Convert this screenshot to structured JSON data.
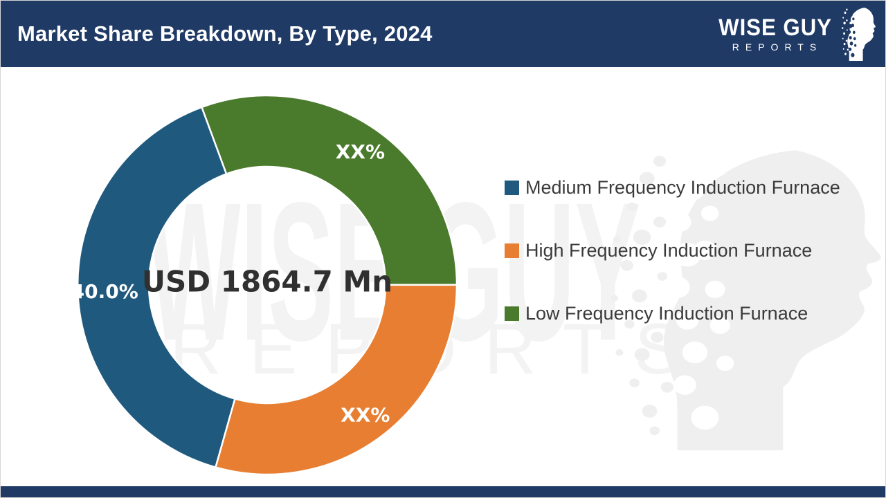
{
  "header": {
    "title": "Market Share Breakdown, By Type, 2024",
    "logo": {
      "line1": "WISE GUY",
      "line2": "REPORTS"
    }
  },
  "watermark": {
    "line1": "WISE GUY",
    "line2": "REPORTS"
  },
  "chart_data": {
    "type": "pie",
    "subtype": "donut",
    "title": "Market Share Breakdown, By Type, 2024",
    "center_label": "USD 1864.7 Mn",
    "start_angle_deg": -110.2,
    "direction": "clockwise",
    "legend_position": "right",
    "segments": [
      {
        "name": "Low Frequency Induction Furnace",
        "pct": 30.6,
        "display_label": "XX%",
        "color": "#4a7a2b"
      },
      {
        "name": "High Frequency Induction Furnace",
        "pct": 29.4,
        "display_label": "XX%",
        "color": "#e87e31"
      },
      {
        "name": "Medium Frequency Induction Furnace",
        "pct": 40.0,
        "display_label": "40.0%",
        "color": "#1f5a7e"
      }
    ],
    "legend": [
      {
        "label": "Medium Frequency Induction Furnace",
        "color": "#1f5a7e"
      },
      {
        "label": "High Frequency Induction Furnace",
        "color": "#e87e31"
      },
      {
        "label": "Low Frequency Induction Furnace",
        "color": "#4a7a2b"
      }
    ]
  },
  "colors": {
    "header_navy": "#203a66",
    "footer_navy": "#203a66",
    "center_text": "#303030",
    "legend_text": "#3a3a3a",
    "watermark_gray": "#f3f3f3",
    "border_gray": "#d6d6d6"
  }
}
